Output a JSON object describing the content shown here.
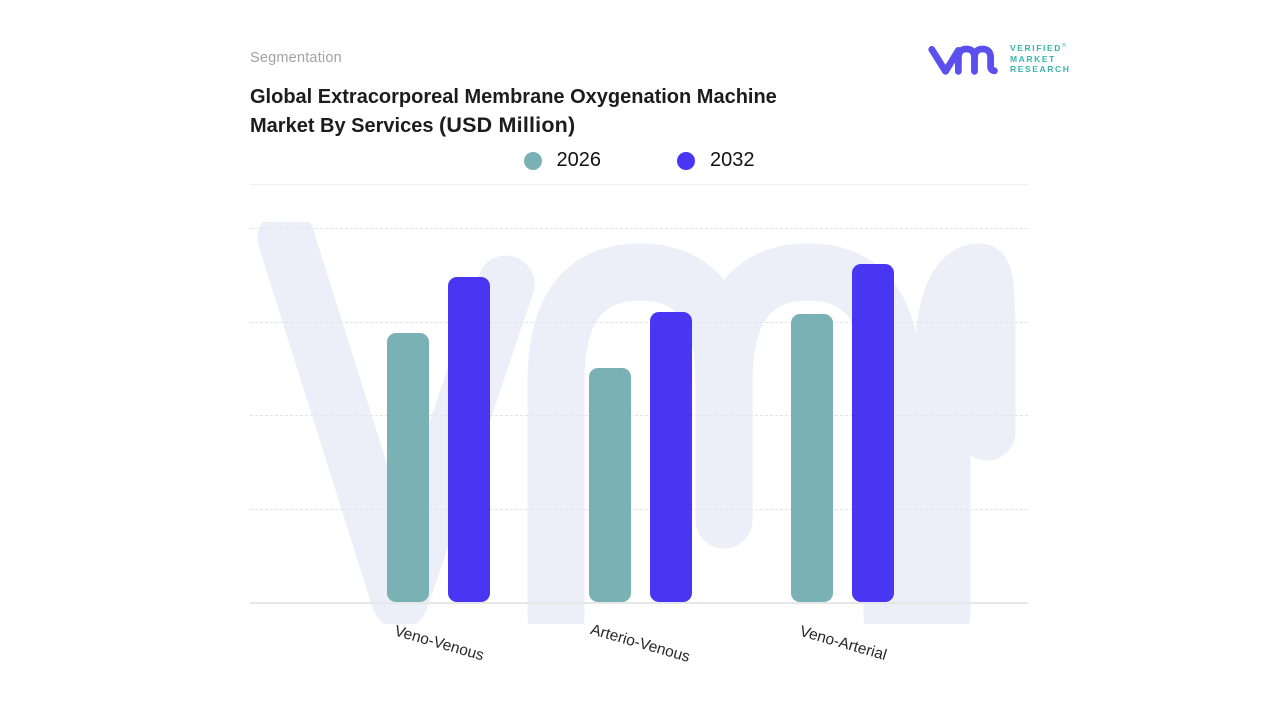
{
  "header": {
    "eyebrow": "Segmentation",
    "title_line1": "Global Extracorporeal Membrane Oxygenation Machine",
    "title_line2": "Market By Services",
    "title_unit": "(USD Million)"
  },
  "logo": {
    "brand_line1": "VERIFIED",
    "brand_line2": "MARKET",
    "brand_line3": "RESEARCH",
    "registered_mark": "®",
    "monogram_color": "#5b4fee",
    "text_color": "#35b5af"
  },
  "legend": [
    {
      "label": "2026",
      "color": "#7ab1b5"
    },
    {
      "label": "2032",
      "color": "#4936f2"
    }
  ],
  "watermark": {
    "color": "#eceef8"
  },
  "chart_data": {
    "type": "bar",
    "title": "Global Extracorporeal Membrane Oxygenation Machine Market By Services (USD Million)",
    "subtitle": "Segmentation",
    "xlabel": "",
    "ylabel": "",
    "categories": [
      "Veno-Venous",
      "Arterio-Venous",
      "Veno-Arterial"
    ],
    "series": [
      {
        "name": "2026",
        "color": "#7ab1b5",
        "values": [
          72,
          62.5,
          77
        ]
      },
      {
        "name": "2032",
        "color": "#4936f2",
        "values": [
          87,
          77.5,
          90.5
        ]
      }
    ],
    "ylim": [
      0,
      100
    ],
    "gridlines": [
      25,
      50,
      75,
      100
    ],
    "grid_style": "dashed",
    "y_tick_labels_shown": false,
    "legend_position": "top",
    "units": "USD Million"
  }
}
